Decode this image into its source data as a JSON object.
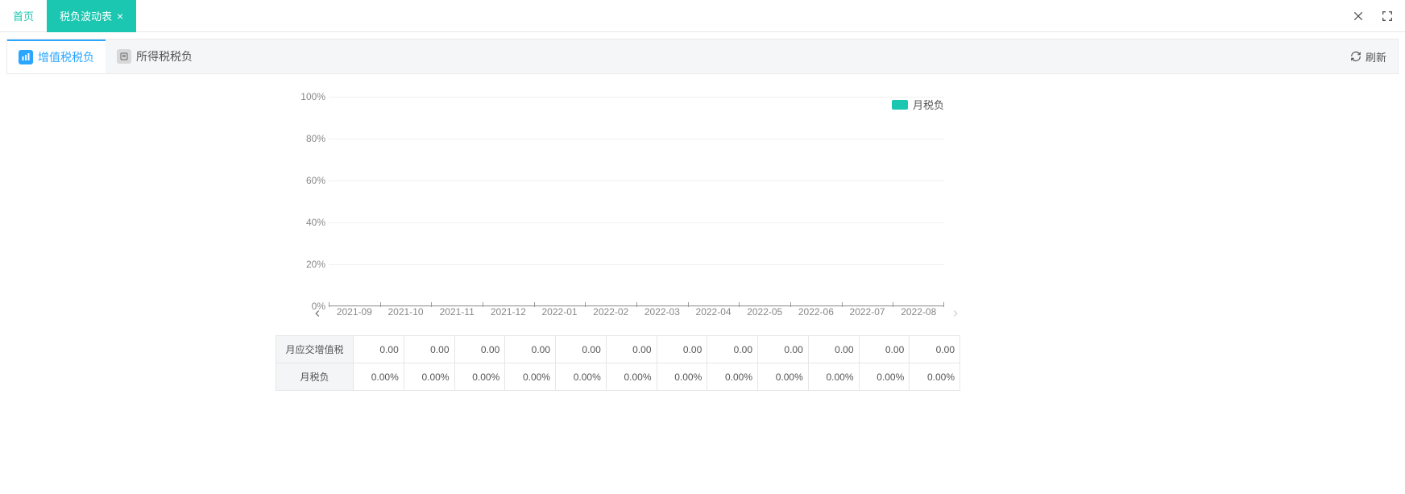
{
  "tabs": {
    "home": "首页",
    "active": "税负波动表"
  },
  "subtabs": {
    "vat": "增值税税负",
    "income": "所得税税负"
  },
  "actions": {
    "refresh": "刷新"
  },
  "chart": {
    "type": "bar",
    "legend_label": "月税负",
    "legend_color": "#1bc7b1",
    "y_ticks": [
      "100%",
      "80%",
      "60%",
      "40%",
      "20%",
      "0%"
    ],
    "y_positions_pct": [
      0,
      20,
      40,
      60,
      80,
      100
    ],
    "grid_color": "#f0f0f0",
    "axis_color": "#999999",
    "background_color": "#ffffff",
    "x_labels": [
      "2021-09",
      "2021-10",
      "2021-11",
      "2021-12",
      "2022-01",
      "2022-02",
      "2022-03",
      "2022-04",
      "2022-05",
      "2022-06",
      "2022-07",
      "2022-08"
    ],
    "values": [
      0,
      0,
      0,
      0,
      0,
      0,
      0,
      0,
      0,
      0,
      0,
      0
    ]
  },
  "table": {
    "row1_label": "月应交增值税",
    "row2_label": "月税负",
    "row1_values": [
      "0.00",
      "0.00",
      "0.00",
      "0.00",
      "0.00",
      "0.00",
      "0.00",
      "0.00",
      "0.00",
      "0.00",
      "0.00",
      "0.00"
    ],
    "row2_values": [
      "0.00%",
      "0.00%",
      "0.00%",
      "0.00%",
      "0.00%",
      "0.00%",
      "0.00%",
      "0.00%",
      "0.00%",
      "0.00%",
      "0.00%",
      "0.00%"
    ]
  }
}
